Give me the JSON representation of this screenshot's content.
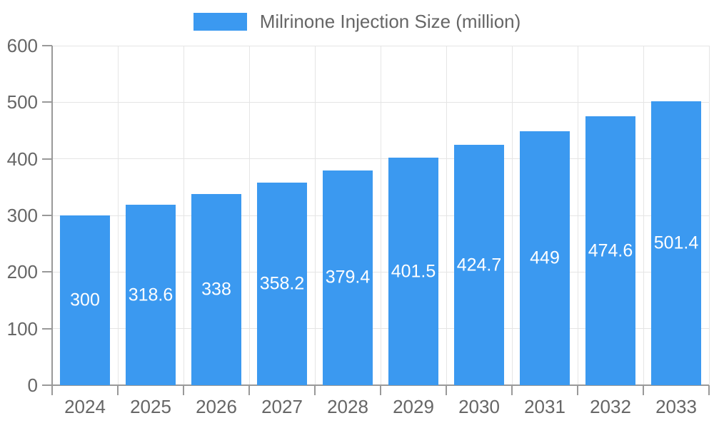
{
  "chart_data": {
    "type": "bar",
    "title": "",
    "legend": "Milrinone Injection Size (million)",
    "legend_position": "top",
    "categories": [
      "2024",
      "2025",
      "2026",
      "2027",
      "2028",
      "2029",
      "2030",
      "2031",
      "2032",
      "2033"
    ],
    "values": [
      300,
      318.6,
      338,
      358.2,
      379.4,
      401.5,
      424.7,
      449,
      474.6,
      501.4
    ],
    "value_labels": [
      "300",
      "318.6",
      "338",
      "358.2",
      "379.4",
      "401.5",
      "424.7",
      "449",
      "474.6",
      "501.4"
    ],
    "xlabel": "",
    "ylabel": "",
    "ylim": [
      0,
      600
    ],
    "y_ticks": [
      0,
      100,
      200,
      300,
      400,
      500,
      600
    ],
    "grid": true,
    "colors": {
      "bar": "#3B99F0",
      "bar_label": "#ffffff",
      "axis_line": "#999999",
      "grid_line": "#e5e5e5",
      "tick_label": "#666666",
      "legend_text": "#666666",
      "background": "#ffffff"
    }
  }
}
